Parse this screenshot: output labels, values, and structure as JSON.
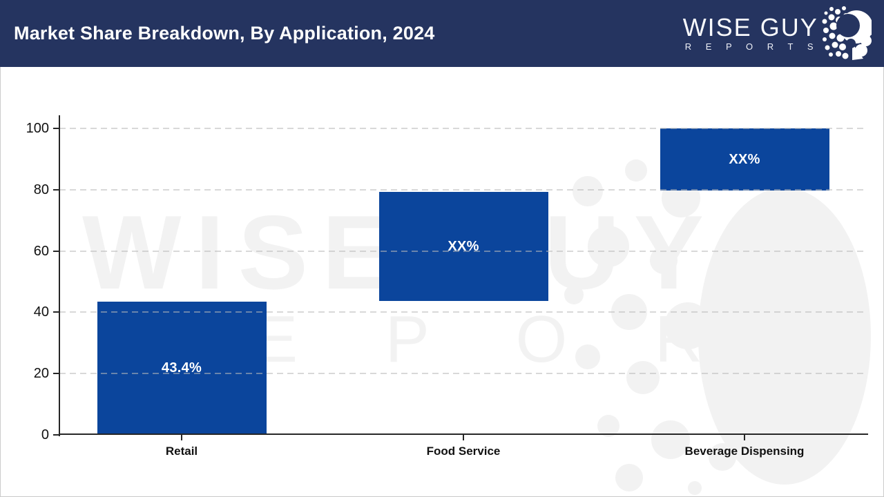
{
  "header": {
    "title": "Market Share Breakdown, By Application, 2024",
    "background_color": "#253460",
    "logo": {
      "line1": "WISE GUY",
      "line2": "R E P O R T S"
    }
  },
  "watermark": {
    "line1": "WISE GUY",
    "line2": "R E P O R T S"
  },
  "chart_data": {
    "type": "bar",
    "subtype": "floating-segment-waterfall",
    "title": "Market Share Breakdown, By Application, 2024",
    "categories": [
      "Retail",
      "Food Service",
      "Beverage Dispensing"
    ],
    "segments": [
      {
        "category": "Retail",
        "start": 0,
        "end": 43.4,
        "label": "43.4%"
      },
      {
        "category": "Food Service",
        "start": 43.6,
        "end": 79.3,
        "label": "XX%"
      },
      {
        "category": "Beverage Dispensing",
        "start": 79.7,
        "end": 100,
        "label": "XX%"
      }
    ],
    "ylim": [
      0,
      100
    ],
    "yticks": [
      0,
      20,
      40,
      60,
      80,
      100
    ],
    "grid": "horizontal dashed, drawn over bars",
    "legend": "none",
    "bar_color": "#0b459c",
    "bar_label_color": "#ffffff",
    "axis_color": "#262626",
    "tick_label_color": "#111111"
  }
}
